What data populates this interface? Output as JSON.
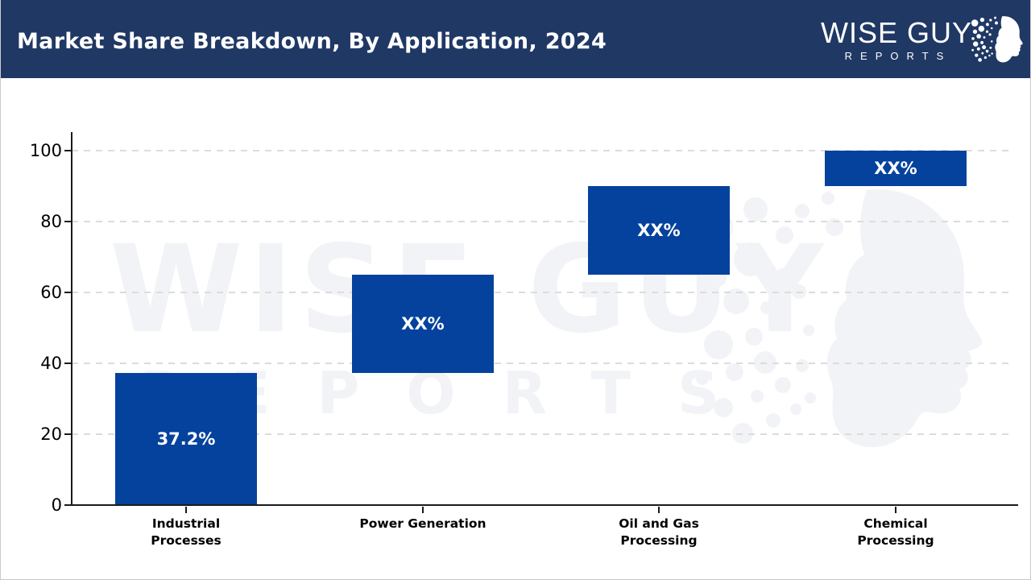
{
  "header": {
    "title": "Market Share Breakdown, By Application, 2024",
    "bg_color": "#203864",
    "logo": {
      "line1": "WISE GUY",
      "line2": "REPORTS"
    }
  },
  "watermark": {
    "line1": "WISE GUY",
    "line2": "REPORTS"
  },
  "chart_data": {
    "type": "bar",
    "variant": "floating-segment-waterfall",
    "title": "Market Share Breakdown, By Application, 2024",
    "categories": [
      "Industrial\nProcesses",
      "Power Generation",
      "Oil and Gas\nProcessing",
      "Chemical\nProcessing"
    ],
    "series": [
      {
        "name": "Market share (%)",
        "segments": [
          {
            "category": "Industrial Processes",
            "start": 0,
            "end": 37.2,
            "label": "37.2%"
          },
          {
            "category": "Power Generation",
            "start": 37.2,
            "end": 65,
            "label": "XX%"
          },
          {
            "category": "Oil and Gas Processing",
            "start": 65,
            "end": 90,
            "label": "XX%"
          },
          {
            "category": "Chemical Processing",
            "start": 90,
            "end": 100,
            "label": "XX%"
          }
        ]
      }
    ],
    "ylim": [
      0,
      100
    ],
    "yticks": [
      0,
      20,
      40,
      60,
      80,
      100
    ],
    "xlabel": "",
    "ylabel": "",
    "grid": "horizontal-dashed",
    "legend": "none",
    "colors": {
      "bar": "#04429d",
      "bar_label": "#ffffff",
      "grid": "#dcdcdc",
      "axis": "#1a1a1a",
      "tick_label": "#000000",
      "header_bg": "#203864",
      "watermark": "#f2f3f6"
    }
  }
}
